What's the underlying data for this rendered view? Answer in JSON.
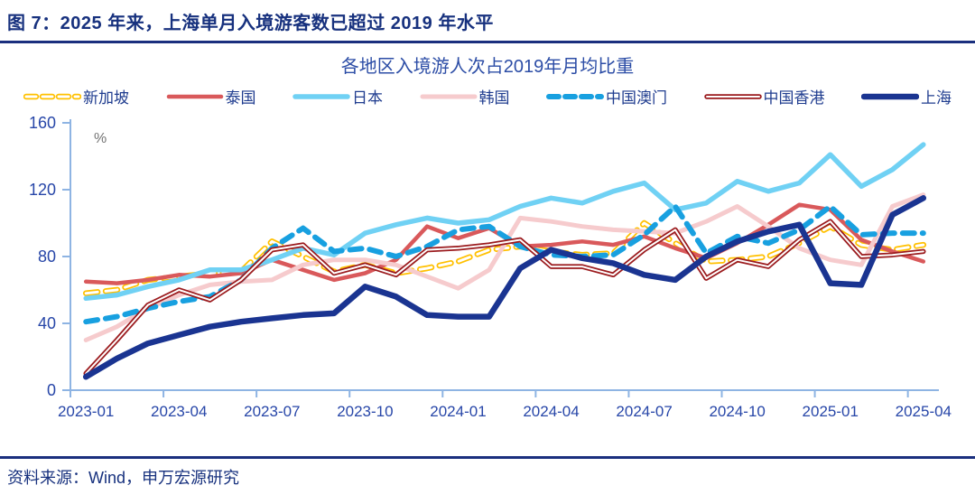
{
  "figure": {
    "caption": "图 7：2025 年来，上海单月入境游客数已超过 2019 年水平",
    "source": "资料来源：Wind，申万宏源研究"
  },
  "colors": {
    "caption_navy": "#17317E",
    "subtitle_blue": "#2C4DA6",
    "axis_line": "#8EB4E3",
    "axis_text": "#2746A8",
    "percent_gray": "#737373"
  },
  "chart_data": {
    "type": "line",
    "title": "各地区入境游人次占2019年月均比重",
    "unit_label": "%",
    "ylim": [
      0,
      160
    ],
    "y_ticks": [
      0,
      40,
      80,
      120,
      160
    ],
    "grid": false,
    "legend_position": "top",
    "x": [
      "2023-01",
      "2023-02",
      "2023-03",
      "2023-04",
      "2023-05",
      "2023-06",
      "2023-07",
      "2023-08",
      "2023-09",
      "2023-10",
      "2023-11",
      "2023-12",
      "2024-01",
      "2024-02",
      "2024-03",
      "2024-04",
      "2024-05",
      "2024-06",
      "2024-07",
      "2024-08",
      "2024-09",
      "2024-10",
      "2024-11",
      "2024-12",
      "2025-01",
      "2025-02",
      "2025-03",
      "2025-04"
    ],
    "x_tick_labels": [
      "2023-01",
      "2023-04",
      "2023-07",
      "2023-10",
      "2024-01",
      "2024-04",
      "2024-07",
      "2024-10",
      "2025-01",
      "2025-04"
    ],
    "series": [
      {
        "name": "新加坡",
        "color": "#FFC000",
        "style": "dashed-hollow",
        "width": 6.5,
        "values": [
          58,
          60,
          66,
          68,
          70,
          71,
          89,
          80,
          71,
          75,
          70,
          73,
          77,
          84,
          86,
          83,
          81,
          82,
          100,
          88,
          77,
          78,
          80,
          88,
          98,
          87,
          84,
          87
        ]
      },
      {
        "name": "泰国",
        "color": "#D9595B",
        "style": "solid",
        "width": 4.5,
        "values": [
          65,
          64,
          66,
          69,
          68,
          70,
          78,
          72,
          66,
          70,
          78,
          98,
          91,
          97,
          86,
          87,
          89,
          87,
          92,
          85,
          79,
          88,
          99,
          111,
          108,
          90,
          83,
          77
        ]
      },
      {
        "name": "日本",
        "color": "#70D1F4",
        "style": "solid",
        "width": 5.5,
        "values": [
          55,
          57,
          62,
          66,
          72,
          72,
          78,
          85,
          81,
          94,
          99,
          103,
          100,
          102,
          110,
          115,
          112,
          119,
          124,
          108,
          112,
          125,
          119,
          124,
          141,
          122,
          132,
          147
        ]
      },
      {
        "name": "韩国",
        "color": "#F6CBCD",
        "style": "solid",
        "width": 5,
        "values": [
          30,
          38,
          49,
          57,
          63,
          65,
          66,
          75,
          78,
          78,
          75,
          68,
          61,
          72,
          103,
          101,
          98,
          96,
          95,
          94,
          101,
          110,
          98,
          85,
          78,
          75,
          110,
          117
        ]
      },
      {
        "name": "中国澳门",
        "color": "#18A0E0",
        "style": "dashed",
        "width": 6,
        "values": [
          41,
          44,
          49,
          53,
          56,
          66,
          85,
          97,
          83,
          85,
          80,
          86,
          96,
          98,
          86,
          81,
          80,
          81,
          93,
          110,
          82,
          92,
          88,
          96,
          110,
          93,
          94,
          94
        ]
      },
      {
        "name": "中国香港",
        "color": "#9B1B1E",
        "style": "solid-hollow",
        "width": 5.5,
        "values": [
          10,
          30,
          51,
          60,
          54,
          66,
          84,
          87,
          70,
          75,
          69,
          84,
          85,
          87,
          90,
          74,
          74,
          69,
          84,
          96,
          67,
          78,
          74,
          90,
          101,
          80,
          81,
          83
        ]
      },
      {
        "name": "上海",
        "color": "#1A3491",
        "style": "solid",
        "width": 6.5,
        "values": [
          8,
          19,
          28,
          33,
          38,
          41,
          43,
          45,
          46,
          62,
          56,
          45,
          44,
          44,
          73,
          84,
          79,
          76,
          69,
          66,
          80,
          89,
          95,
          99,
          64,
          63,
          105,
          115
        ]
      }
    ]
  }
}
